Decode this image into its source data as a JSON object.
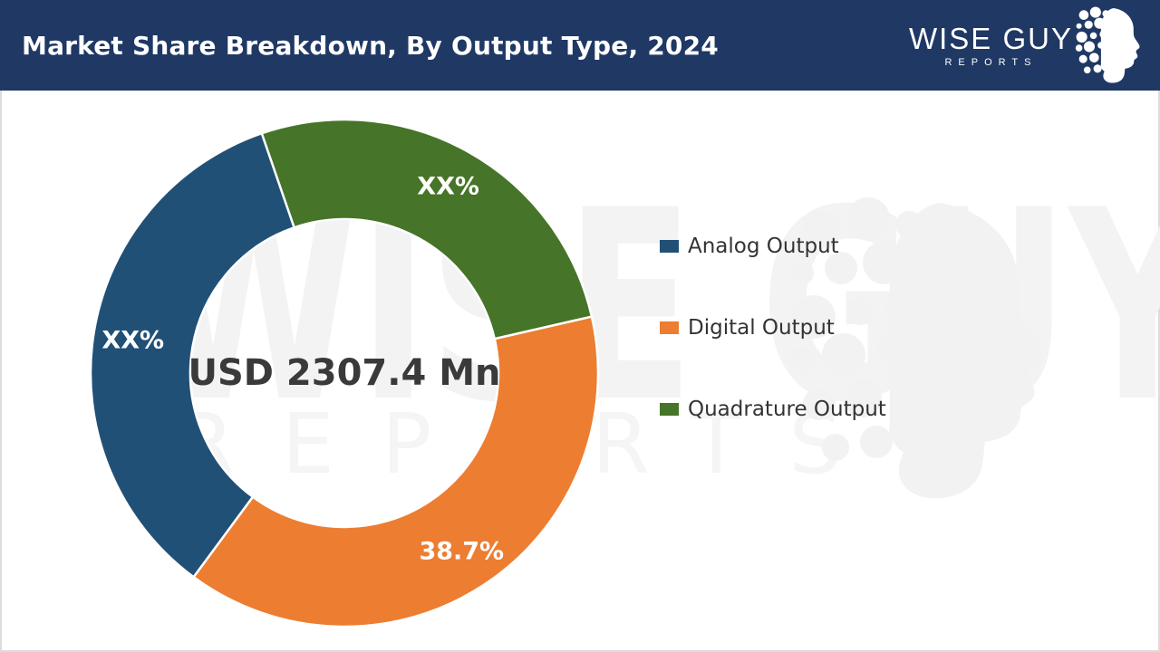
{
  "header": {
    "title": "Market Share Breakdown, By Output Type, 2024",
    "logo": {
      "line1": "WISE GUY",
      "line2": "REPORTS"
    }
  },
  "watermark": {
    "line1": "WISE GUY",
    "line2": "REPORTS"
  },
  "chart_data": {
    "type": "donut",
    "title": "Market Share Breakdown, By Output Type, 2024",
    "center_label": "USD 2307.4 Mn",
    "start_angle_deg": 109,
    "direction": "counterclockwise",
    "legend_position": "right",
    "slices": [
      {
        "name": "Analog Output",
        "value_pct": 34.6,
        "label": "XX%",
        "color": "#215077"
      },
      {
        "name": "Digital Output",
        "value_pct": 38.7,
        "label": "38.7%",
        "color": "#ED7D31"
      },
      {
        "name": "Quadrature Output",
        "value_pct": 26.7,
        "label": "XX%",
        "color": "#467428"
      }
    ]
  },
  "colors": {
    "header_bg": "#1F3864",
    "border": "#dcdcdc",
    "watermark": "#f2f2f2",
    "center_text": "#3a3a3a",
    "legend_text": "#333333"
  }
}
